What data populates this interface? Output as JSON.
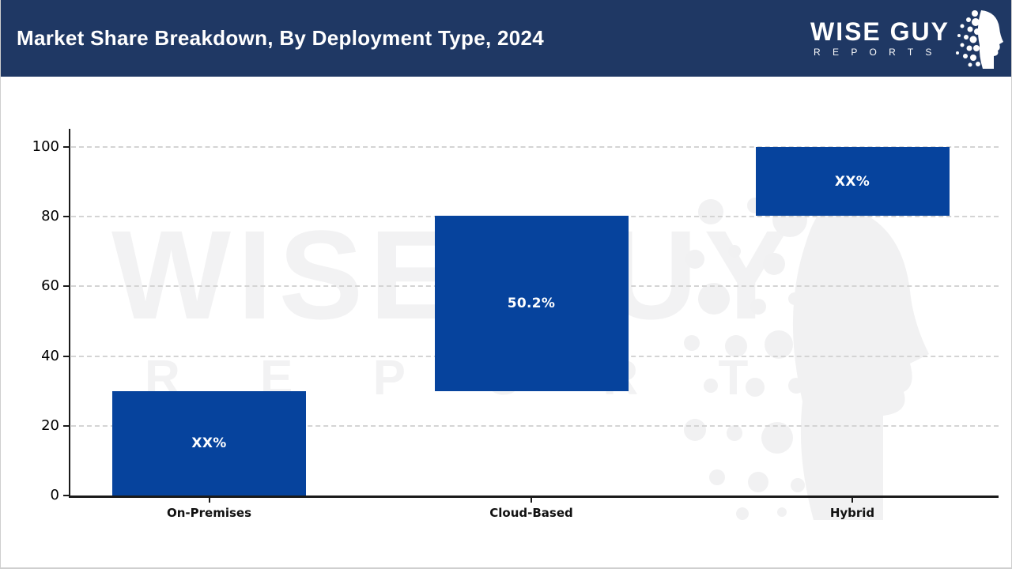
{
  "header": {
    "title": "Market Share Breakdown, By Deployment Type, 2024",
    "logo_line1": "WISE GUY",
    "logo_line2": "R E P O R T S",
    "bg_color": "#1f3864"
  },
  "watermark": {
    "line1": "WISE GUY",
    "line2": "R E P O R T S"
  },
  "chart_data": {
    "type": "bar",
    "variant": "floating-segment-breakdown",
    "title": "Market Share Breakdown, By Deployment Type, 2024",
    "categories": [
      "On-Premises",
      "Cloud-Based",
      "Hybrid"
    ],
    "segments": [
      {
        "category": "On-Premises",
        "start": 0,
        "end": 30,
        "label": "XX%"
      },
      {
        "category": "Cloud-Based",
        "start": 30,
        "end": 80.2,
        "label": "50.2%"
      },
      {
        "category": "Hybrid",
        "start": 80.2,
        "end": 100,
        "label": "XX%"
      }
    ],
    "yticks": [
      0,
      20,
      40,
      60,
      80,
      100
    ],
    "ylim": [
      0,
      105
    ],
    "xlabel": "",
    "ylabel": "",
    "grid": "horizontal-dashed",
    "legend": "none",
    "bar_color": "#06439d",
    "grid_color": "#d4d4d4",
    "axis_color": "#1a1a1a",
    "inside_label_color": "#ffffff"
  }
}
